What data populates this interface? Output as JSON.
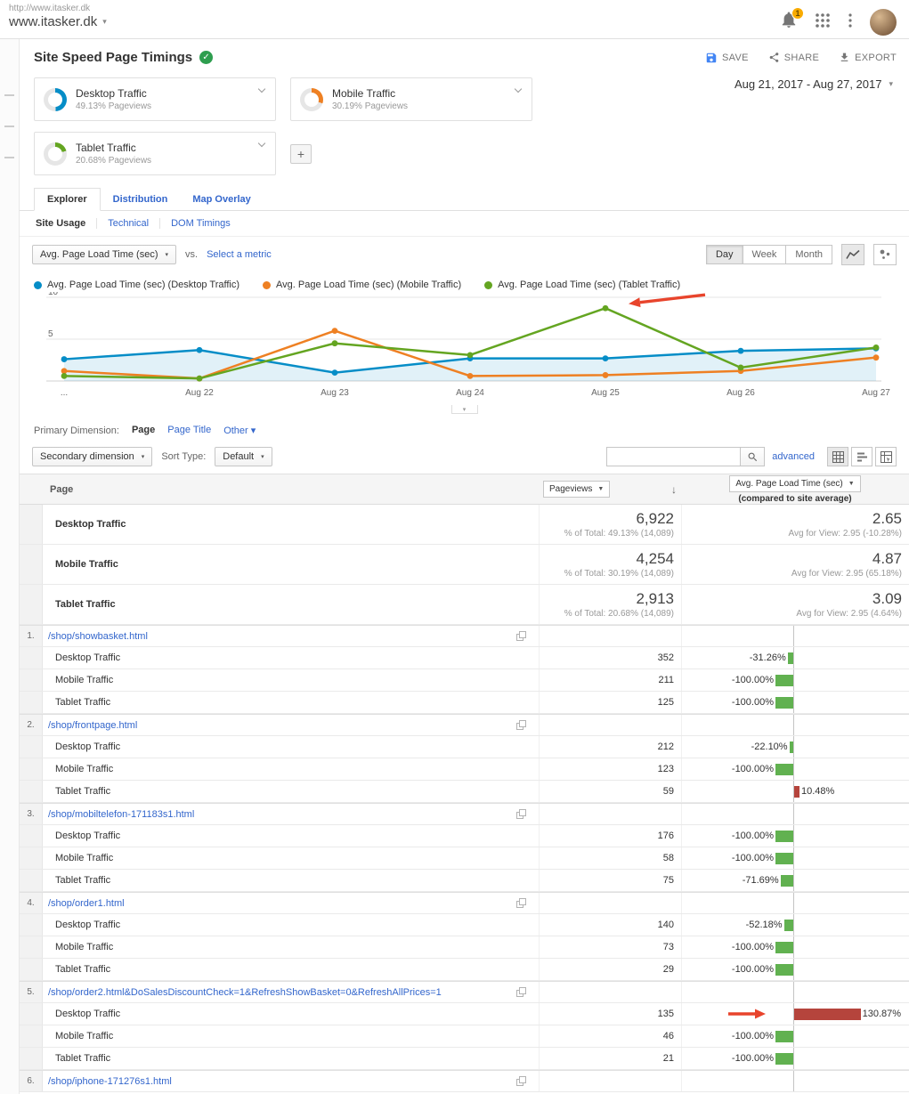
{
  "topbar": {
    "url": "http://www.itasker.dk",
    "account": "www.itasker.dk",
    "notification_count": "1"
  },
  "toolbar": {
    "save": "SAVE",
    "share": "SHARE",
    "export": "EXPORT"
  },
  "report": {
    "title": "Site Speed Page Timings",
    "date_range": "Aug 21, 2017 - Aug 27, 2017"
  },
  "segments": [
    {
      "name": "Desktop Traffic",
      "subtitle": "49.13% Pageviews",
      "pct": 49.13,
      "color": "#058dc7"
    },
    {
      "name": "Mobile Traffic",
      "subtitle": "30.19% Pageviews",
      "pct": 30.19,
      "color": "#ee8023"
    },
    {
      "name": "Tablet Traffic",
      "subtitle": "20.68% Pageviews",
      "pct": 20.68,
      "color": "#64a521"
    }
  ],
  "tabs": [
    {
      "label": "Explorer",
      "active": true
    },
    {
      "label": "Distribution",
      "active": false
    },
    {
      "label": "Map Overlay",
      "active": false
    }
  ],
  "subtabs": [
    {
      "label": "Site Usage",
      "active": true
    },
    {
      "label": "Technical",
      "active": false
    },
    {
      "label": "DOM Timings",
      "active": false
    }
  ],
  "metric_bar": {
    "metric": "Avg. Page Load Time (sec)",
    "vs_label": "vs.",
    "select_metric": "Select a metric",
    "granularity": [
      {
        "label": "Day",
        "active": true
      },
      {
        "label": "Week",
        "active": false
      },
      {
        "label": "Month",
        "active": false
      }
    ]
  },
  "chart_data": {
    "type": "line",
    "x": [
      "...",
      "Aug 22",
      "Aug 23",
      "Aug 24",
      "Aug 25",
      "Aug 26",
      "Aug 27"
    ],
    "ylim": [
      0,
      10
    ],
    "yticks": [
      5,
      10
    ],
    "grid": true,
    "legend_position": "top",
    "series": [
      {
        "name": "Avg. Page Load Time (sec) (Desktop Traffic)",
        "color": "#058dc7",
        "area": true,
        "values": [
          2.6,
          3.7,
          1.0,
          2.7,
          2.7,
          3.6,
          3.9
        ]
      },
      {
        "name": "Avg. Page Load Time (sec) (Mobile Traffic)",
        "color": "#ee8023",
        "area": false,
        "values": [
          1.2,
          0.3,
          6.0,
          0.6,
          0.7,
          1.2,
          2.8
        ]
      },
      {
        "name": "Avg. Page Load Time (sec) (Tablet Traffic)",
        "color": "#64a521",
        "area": false,
        "values": [
          0.6,
          0.3,
          4.5,
          3.1,
          8.7,
          1.6,
          4.0
        ]
      }
    ],
    "annotation": {
      "type": "arrow",
      "series": 2,
      "point": 4,
      "color": "#e8442c"
    }
  },
  "primary_dimension": {
    "label": "Primary Dimension:",
    "options": [
      {
        "label": "Page",
        "active": true,
        "caret": false
      },
      {
        "label": "Page Title",
        "active": false,
        "caret": false
      },
      {
        "label": "Other",
        "active": false,
        "caret": true
      }
    ]
  },
  "table_controls": {
    "secondary_dimension": "Secondary dimension",
    "sort_type_label": "Sort Type:",
    "sort_type_value": "Default",
    "search_placeholder": "",
    "advanced": "advanced"
  },
  "table": {
    "col_page": "Page",
    "col_pageviews": "Pageviews",
    "col_avg": "Avg. Page Load Time (sec)",
    "col_avg_sub": "(compared to site average)",
    "summary": [
      {
        "name": "Desktop Traffic",
        "pageviews": "6,922",
        "pageviews_sub": "% of Total: 49.13% (14,089)",
        "avg": "2.65",
        "avg_sub": "Avg for View: 2.95 (-10.28%)"
      },
      {
        "name": "Mobile Traffic",
        "pageviews": "4,254",
        "pageviews_sub": "% of Total: 30.19% (14,089)",
        "avg": "4.87",
        "avg_sub": "Avg for View: 2.95 (65.18%)"
      },
      {
        "name": "Tablet Traffic",
        "pageviews": "2,913",
        "pageviews_sub": "% of Total: 20.68% (14,089)",
        "avg": "3.09",
        "avg_sub": "Avg for View: 2.95 (4.64%)"
      }
    ],
    "rows": [
      {
        "index": "1.",
        "page": "/shop/showbasket.html",
        "segments": [
          {
            "name": "Desktop Traffic",
            "pageviews": "352",
            "pct": -31.26,
            "pct_label": "-31.26%"
          },
          {
            "name": "Mobile Traffic",
            "pageviews": "211",
            "pct": -100,
            "pct_label": "-100.00%"
          },
          {
            "name": "Tablet Traffic",
            "pageviews": "125",
            "pct": -100,
            "pct_label": "-100.00%"
          }
        ]
      },
      {
        "index": "2.",
        "page": "/shop/frontpage.html",
        "segments": [
          {
            "name": "Desktop Traffic",
            "pageviews": "212",
            "pct": -22.1,
            "pct_label": "-22.10%"
          },
          {
            "name": "Mobile Traffic",
            "pageviews": "123",
            "pct": -100,
            "pct_label": "-100.00%"
          },
          {
            "name": "Tablet Traffic",
            "pageviews": "59",
            "pct": 10.48,
            "pct_label": "10.48%"
          }
        ]
      },
      {
        "index": "3.",
        "page": "/shop/mobiltelefon-171183s1.html",
        "segments": [
          {
            "name": "Desktop Traffic",
            "pageviews": "176",
            "pct": -100,
            "pct_label": "-100.00%"
          },
          {
            "name": "Mobile Traffic",
            "pageviews": "58",
            "pct": -100,
            "pct_label": "-100.00%"
          },
          {
            "name": "Tablet Traffic",
            "pageviews": "75",
            "pct": -71.69,
            "pct_label": "-71.69%"
          }
        ]
      },
      {
        "index": "4.",
        "page": "/shop/order1.html",
        "segments": [
          {
            "name": "Desktop Traffic",
            "pageviews": "140",
            "pct": -52.18,
            "pct_label": "-52.18%"
          },
          {
            "name": "Mobile Traffic",
            "pageviews": "73",
            "pct": -100,
            "pct_label": "-100.00%"
          },
          {
            "name": "Tablet Traffic",
            "pageviews": "29",
            "pct": -100,
            "pct_label": "-100.00%"
          }
        ]
      },
      {
        "index": "5.",
        "page": "/shop/order2.html&DoSalesDiscountCheck=1&RefreshShowBasket=0&RefreshAllPrices=1",
        "segments": [
          {
            "name": "Desktop Traffic",
            "pageviews": "135",
            "pct": 130.87,
            "pct_label": "130.87%",
            "arrow": true
          },
          {
            "name": "Mobile Traffic",
            "pageviews": "46",
            "pct": -100,
            "pct_label": "-100.00%"
          },
          {
            "name": "Tablet Traffic",
            "pageviews": "21",
            "pct": -100,
            "pct_label": "-100.00%"
          }
        ]
      },
      {
        "index": "6.",
        "page": "/shop/iphone-171276s1.html",
        "segments": []
      }
    ]
  },
  "colors": {
    "pos_bar": "#b5443c",
    "neg_bar": "#61b150",
    "link": "#3366cc"
  }
}
